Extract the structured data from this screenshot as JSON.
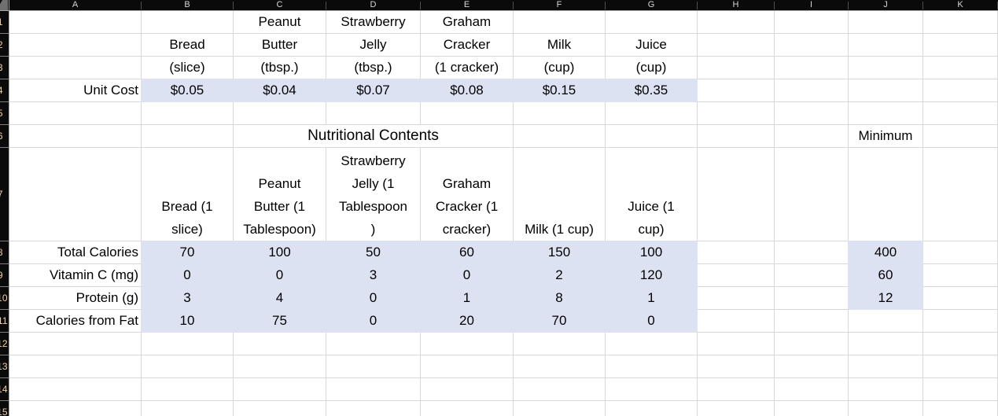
{
  "colors": {
    "highlight_fill": "#dde2f3",
    "gridline": "#d8d8d8",
    "header_background": "#0a0a0a",
    "column_letter": "#d8d8d8",
    "row_number": "#f4d2a2"
  },
  "column_headers": [
    "A",
    "B",
    "C",
    "D",
    "E",
    "F",
    "G",
    "H",
    "I",
    "J",
    "K"
  ],
  "row_headers": [
    "1",
    "2",
    "3",
    "4",
    "5",
    "6",
    "7",
    "8",
    "9",
    "10",
    "11",
    "12",
    "13",
    "14",
    "15"
  ],
  "cells": {
    "C1": "Peanut",
    "D1": "Strawberry",
    "E1": "Graham",
    "B2": "Bread",
    "C2": "Butter",
    "D2": "Jelly",
    "E2": "Cracker",
    "F2": "Milk",
    "G2": "Juice",
    "B3": "(slice)",
    "C3": "(tbsp.)",
    "D3": "(tbsp.)",
    "E3": "(1 cracker)",
    "F3": "(cup)",
    "G3": "(cup)",
    "A4": "Unit Cost",
    "B4": "$0.05",
    "C4": "$0.04",
    "D4": "$0.07",
    "E4": "$0.08",
    "F4": "$0.15",
    "G4": "$0.35",
    "D6": "Nutritional Contents",
    "J6": "Minimum",
    "B7": "Bread (1\nslice)",
    "C7": "Peanut\nButter (1\nTablespoon)",
    "D7": "Strawberry\nJelly (1\nTablespoon\n)",
    "E7": "Graham\nCracker (1\ncracker)",
    "F7": "Milk (1 cup)",
    "G7": "Juice (1\ncup)",
    "A8": "Total Calories",
    "B8": "70",
    "C8": "100",
    "D8": "50",
    "E8": "60",
    "F8": "150",
    "G8": "100",
    "J8": "400",
    "A9": "Vitamin C (mg)",
    "B9": "0",
    "C9": "0",
    "D9": "3",
    "E9": "0",
    "F9": "2",
    "G9": "120",
    "J9": "60",
    "A10": "Protein (g)",
    "B10": "3",
    "C10": "4",
    "D10": "0",
    "E10": "1",
    "F10": "8",
    "G10": "1",
    "J10": "12",
    "A11": "Calories from Fat",
    "B11": "10",
    "C11": "75",
    "D11": "0",
    "E11": "20",
    "F11": "70",
    "G11": "0"
  }
}
